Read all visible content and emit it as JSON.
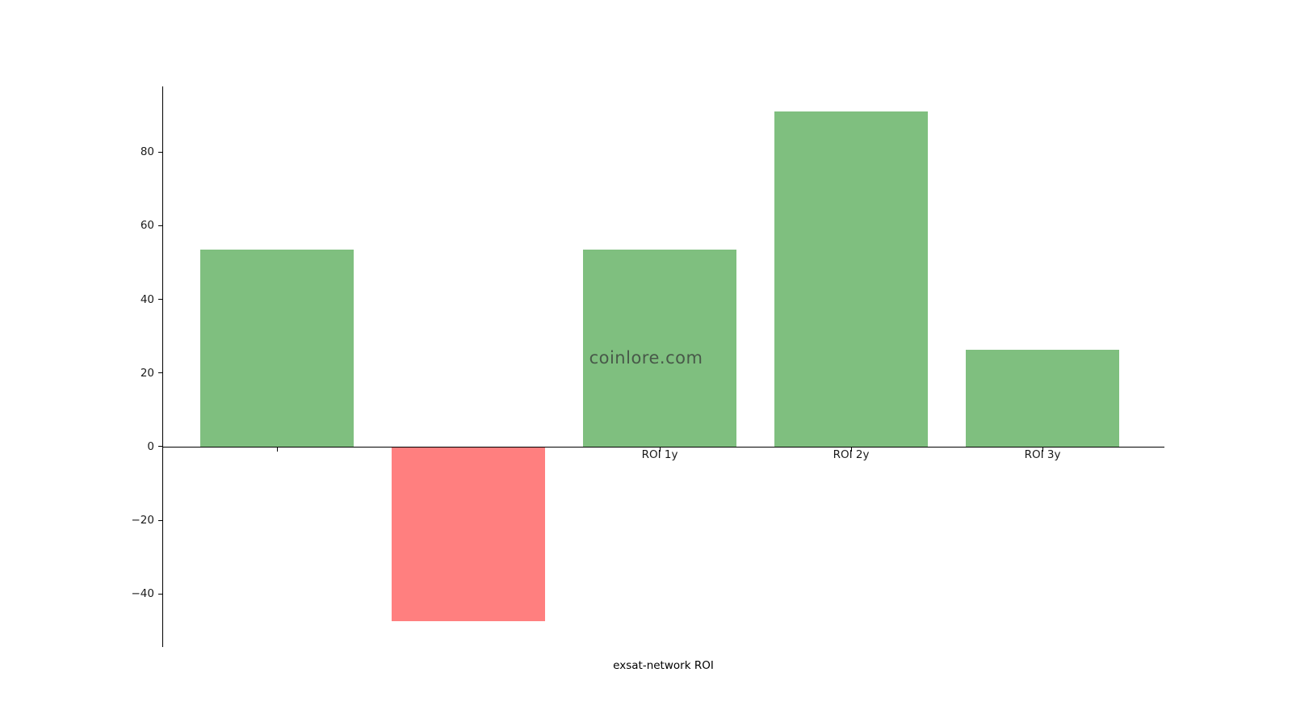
{
  "page": {
    "background": "#ffffff"
  },
  "watermark": {
    "text": "coinlore.com"
  },
  "chart_data": {
    "type": "bar",
    "title": "exsat-network ROI",
    "xlabel": "exsat-network ROI",
    "ylabel": "",
    "categories": [
      "",
      "",
      "ROI 1y",
      "ROI 2y",
      "ROI 3y"
    ],
    "values": [
      53.5,
      -47.1,
      53.5,
      91,
      26.3
    ],
    "bar_colors": [
      "#7fbf7f",
      "#ff7f7f",
      "#7fbf7f",
      "#7fbf7f",
      "#7fbf7f"
    ],
    "positive_color": "#7fbf7f",
    "negative_color": "#ff7f7f",
    "y_ticks": [
      80,
      60,
      40,
      20,
      0,
      -20,
      -40
    ],
    "ylim": [
      -54.4,
      97.8
    ],
    "grid": false,
    "legend": null,
    "axis_color": "#000000",
    "tick_label_color": "#1a1a1a"
  }
}
